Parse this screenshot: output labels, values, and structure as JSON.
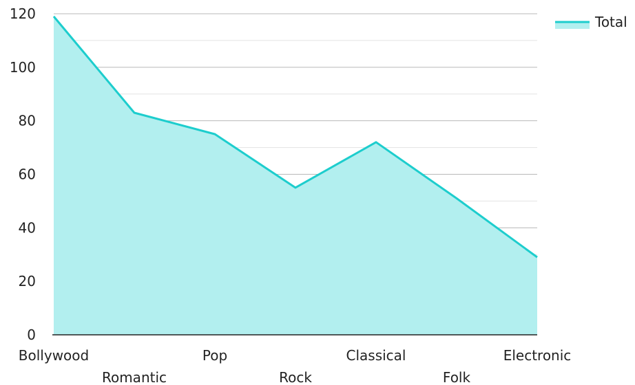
{
  "chart_data": {
    "type": "area",
    "categories": [
      "Bollywood",
      "Romantic",
      "Pop",
      "Rock",
      "Classical",
      "Folk",
      "Electronic"
    ],
    "series": [
      {
        "name": "Total",
        "values": [
          119,
          83,
          75,
          55,
          72,
          51,
          29
        ]
      }
    ],
    "ylim": [
      0,
      120
    ],
    "yticks": [
      0,
      20,
      40,
      60,
      80,
      100,
      120
    ],
    "grid": true,
    "legend": "top-right",
    "colors": {
      "line": "#1dcdcd",
      "fill": "#b2efef",
      "grid_major": "#b8b8b8",
      "grid_minor": "#e3e3e3",
      "axis": "#222222"
    }
  }
}
